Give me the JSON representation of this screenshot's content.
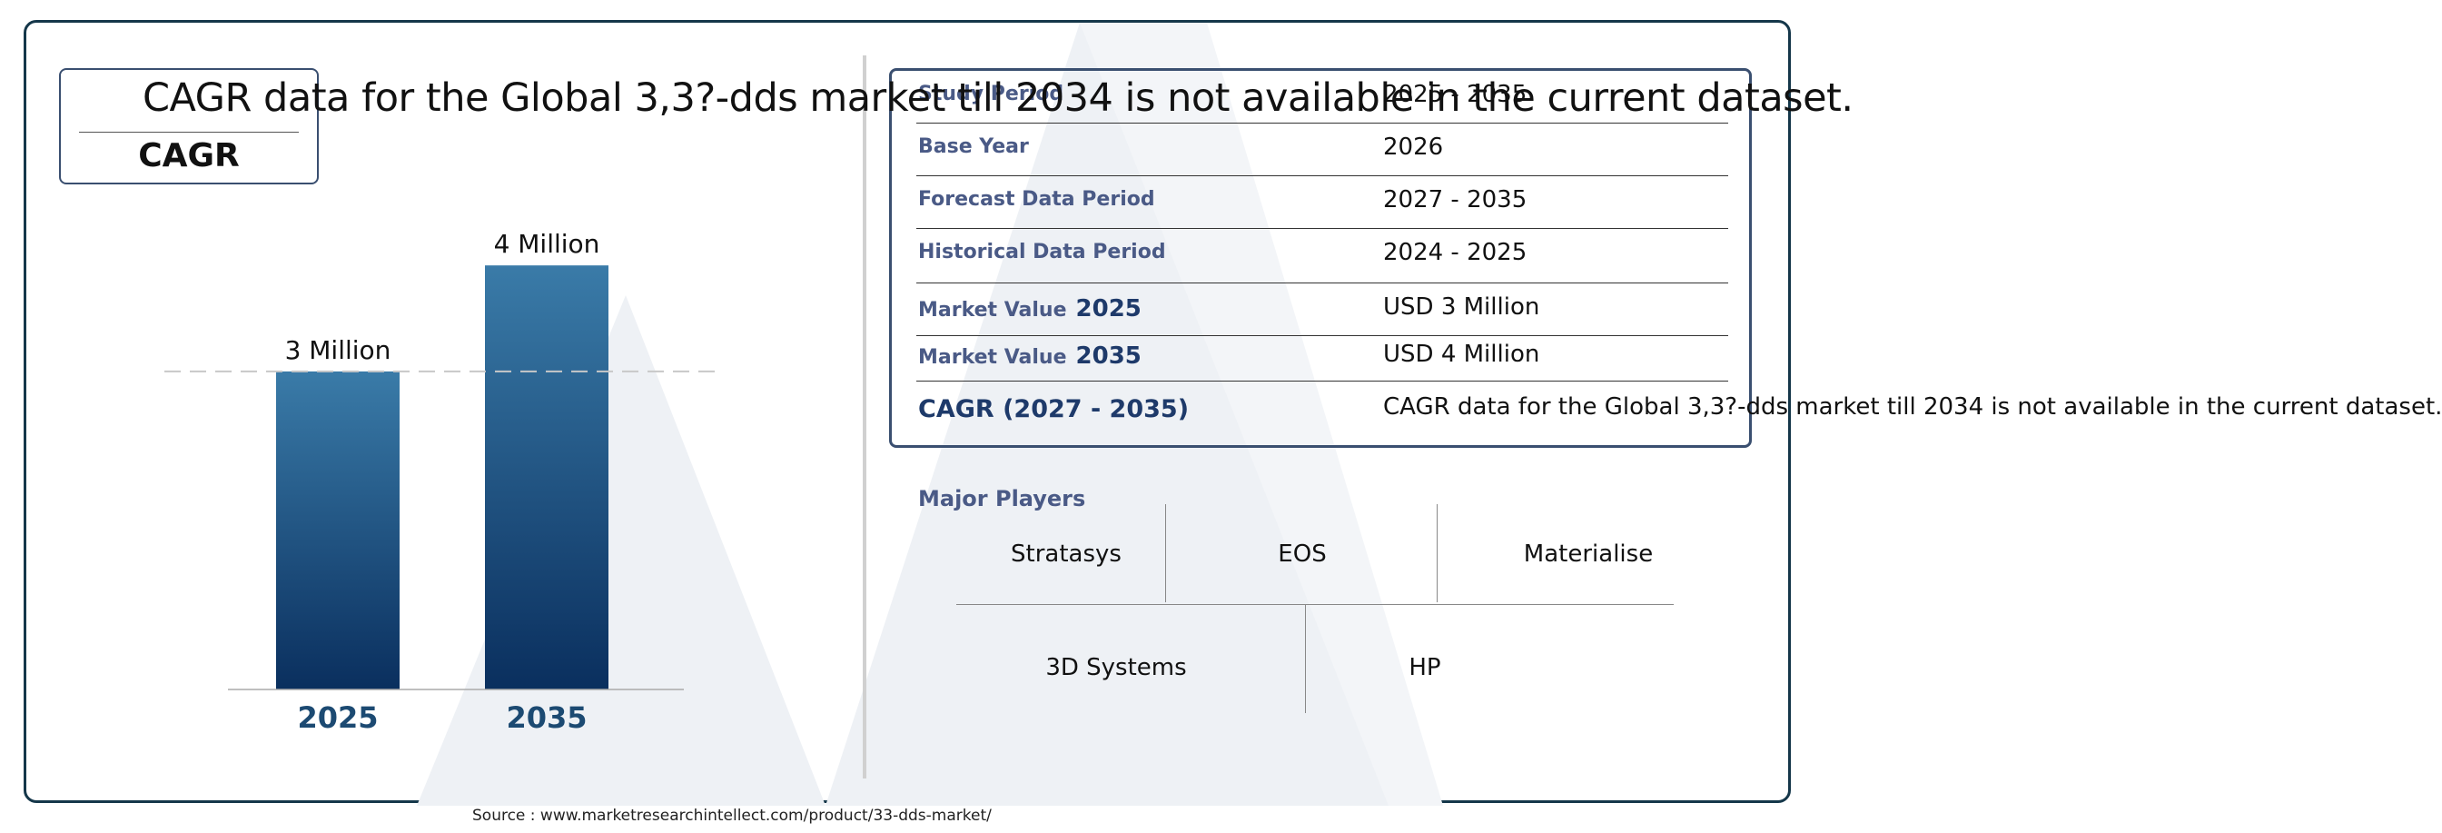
{
  "overlay_text": "CAGR data for the Global 3,3?-dds market till 2034 is not available in the current dataset.",
  "cagr_box": {
    "label": "CAGR"
  },
  "chart_data": {
    "type": "bar",
    "categories": [
      "2025",
      "2035"
    ],
    "values": [
      3,
      4
    ],
    "data_labels": [
      "3 Million",
      "4 Million"
    ],
    "title": "",
    "xlabel": "",
    "ylabel": "",
    "ylim": [
      0,
      4.25
    ],
    "grid": false,
    "reference_line": {
      "value": 3,
      "style": "dashed"
    },
    "colors": {
      "bar_top": "#3a7ba8",
      "bar_bottom": "#0a2f5e",
      "category_label": "#1c4a72"
    }
  },
  "table": {
    "rows": [
      {
        "key": "Study Period",
        "value": "2025 - 2035"
      },
      {
        "key": "Base Year",
        "value": "2026"
      },
      {
        "key": "Forecast Data Period",
        "value": "2027 - 2035"
      },
      {
        "key": "Historical Data Period",
        "value": "2024 - 2025"
      },
      {
        "key": "Market Value",
        "year": "2025",
        "value": "USD 3 Million"
      },
      {
        "key": "Market Value",
        "year": "2035",
        "value": "USD 4 Million"
      },
      {
        "key": "CAGR (2027 - 2035)",
        "value": "CAGR data for the Global 3,3?-dds market till 2034 is not available in the current dataset."
      }
    ]
  },
  "players": {
    "title": "Major Players",
    "names": [
      "Stratasys",
      "EOS",
      "Materialise",
      "3D Systems",
      "HP"
    ]
  },
  "source": "Source : www.marketresearchintellect.com/product/33-dds-market/",
  "colors": {
    "frame": "#15374a",
    "box_border": "#3a4f70",
    "key_text": "#4a5a86"
  }
}
